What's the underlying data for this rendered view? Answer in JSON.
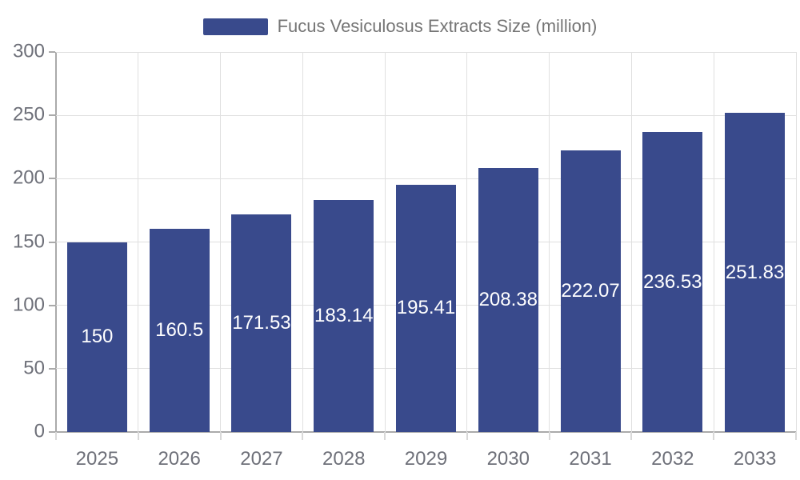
{
  "legend": {
    "label": "Fucus Vesiculosus Extracts Size (million)"
  },
  "colors": {
    "background": "#ffffff",
    "bar_color": "#394a8c",
    "grid_line": "#e0e0e0",
    "axis_line": "#aaaaaa",
    "xtick_color": "#d9d9d9",
    "tick_label": "#6e7079",
    "legend_text": "#757575",
    "value_label": "#ffffff"
  },
  "chart_data": {
    "type": "bar",
    "title": "Fucus Vesiculosus Extracts Size (million)",
    "categories": [
      "2025",
      "2026",
      "2027",
      "2028",
      "2029",
      "2030",
      "2031",
      "2032",
      "2033"
    ],
    "series": [
      {
        "name": "Fucus Vesiculosus Extracts Size (million)",
        "values": [
          150,
          160.5,
          171.53,
          183.14,
          195.41,
          208.38,
          222.07,
          236.53,
          251.83
        ]
      }
    ],
    "value_labels": [
      "150",
      "160.5",
      "171.53",
      "183.14",
      "195.41",
      "208.38",
      "222.07",
      "236.53",
      "251.83"
    ],
    "xlabel": "",
    "ylabel": "",
    "ylim": [
      0,
      300
    ],
    "yticks": [
      0,
      50,
      100,
      150,
      200,
      250,
      300
    ],
    "ytick_labels": [
      "0",
      "50",
      "100",
      "150",
      "200",
      "250",
      "300"
    ],
    "grid": true,
    "legend_position": "top"
  }
}
